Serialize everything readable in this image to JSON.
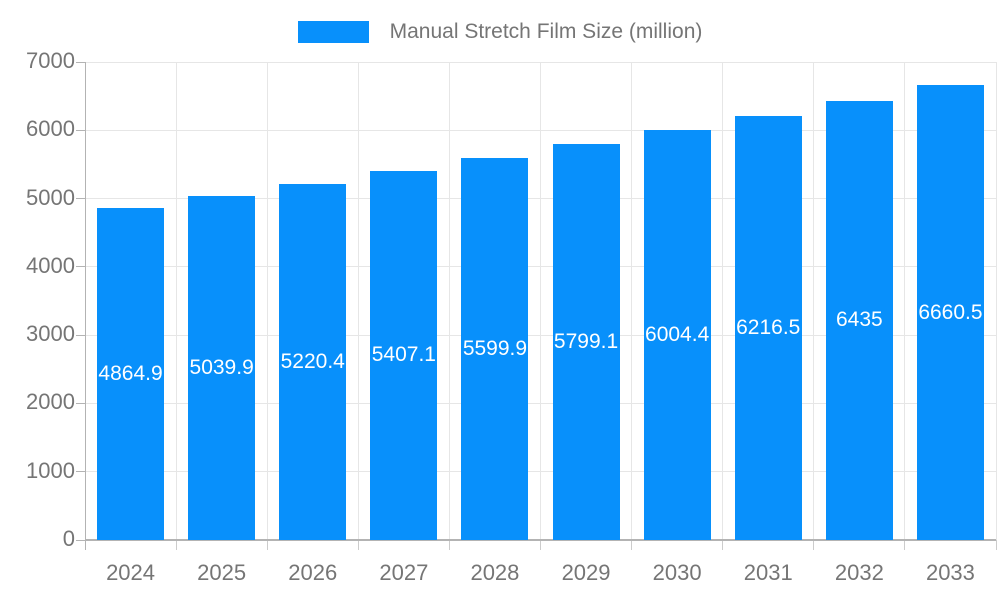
{
  "legend": {
    "label": "Manual Stretch Film Size (million)"
  },
  "colors": {
    "bar": "#0890fb",
    "grid": "#e6e6e6",
    "axis": "#b3b3b3",
    "x_tick": "#cccccc",
    "axis_text": "#757575",
    "value_label": "#ffffff",
    "background": "#ffffff"
  },
  "chart_data": {
    "type": "bar",
    "title": "Manual Stretch Film Size (million)",
    "legend_entries": [
      "Manual Stretch Film Size (million)"
    ],
    "legend_position": "top-center",
    "categories": [
      "2024",
      "2025",
      "2026",
      "2027",
      "2028",
      "2029",
      "2030",
      "2031",
      "2032",
      "2033"
    ],
    "series": [
      {
        "name": "Manual Stretch Film Size (million)",
        "values": [
          4864.9,
          5039.9,
          5220.4,
          5407.1,
          5599.9,
          5799.1,
          6004.4,
          6216.5,
          6435,
          6660.5
        ]
      }
    ],
    "value_labels": [
      "4864.9",
      "5039.9",
      "5220.4",
      "5407.1",
      "5599.9",
      "5799.1",
      "6004.4",
      "6216.5",
      "6435",
      "6660.5"
    ],
    "value_labels_position": "inside-middle",
    "xlabel": "",
    "ylabel": "",
    "ylim": [
      0,
      7000
    ],
    "y_ticks": [
      0,
      1000,
      2000,
      3000,
      4000,
      5000,
      6000,
      7000
    ],
    "y_tick_labels": [
      "0",
      "1000",
      "2000",
      "3000",
      "4000",
      "5000",
      "6000",
      "7000"
    ],
    "grid": true
  }
}
